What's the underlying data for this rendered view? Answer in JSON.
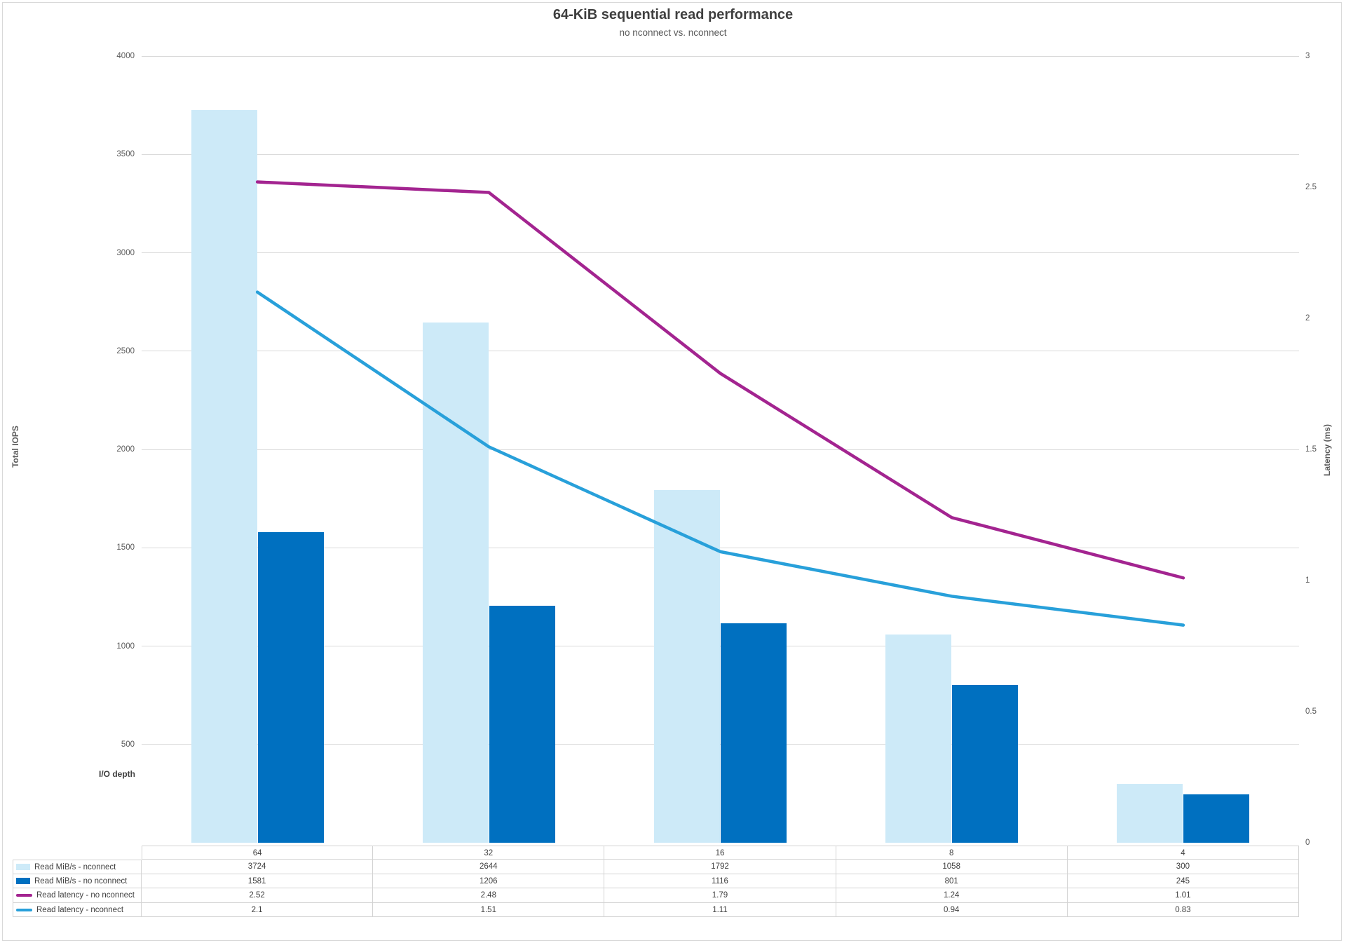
{
  "chart": {
    "title": "64-KiB sequential read performance",
    "subtitle": "no nconnect vs. nconnect"
  },
  "chart_data": {
    "type": "combo-bar-line-with-data-table",
    "categories": [
      "64",
      "32",
      "16",
      "8",
      "4"
    ],
    "series": [
      {
        "name": "Read MiB/s - nconnect",
        "type": "bar",
        "axis": "left",
        "color": "#CDEAF8",
        "values": [
          3724,
          2644,
          1792,
          1058,
          300
        ]
      },
      {
        "name": "Read MiB/s - no nconnect",
        "type": "bar",
        "axis": "left",
        "color": "#0070C0",
        "values": [
          1581,
          1206,
          1116,
          801,
          245
        ]
      },
      {
        "name": "Read latency - no nconnect",
        "type": "line",
        "axis": "right",
        "color": "#A32490",
        "values": [
          2.52,
          2.48,
          1.79,
          1.24,
          1.01
        ]
      },
      {
        "name": "Read latency - nconnect",
        "type": "line",
        "axis": "right",
        "color": "#28A0DA",
        "values": [
          2.1,
          1.51,
          1.11,
          0.94,
          0.83
        ]
      }
    ],
    "left_axis": {
      "title": "Total IOPS",
      "min": 0,
      "max": 4000,
      "tick_labels": [
        "4000",
        "3500",
        "3000",
        "2500",
        "2000",
        "1500",
        "1000",
        "500"
      ]
    },
    "right_axis": {
      "title": "Latency (ms)",
      "min": 0,
      "max": 3,
      "tick_labels": [
        "3",
        "2.5",
        "2",
        "1.5",
        "1",
        "0.5",
        "0"
      ]
    },
    "x_axis": {
      "title": "I/O depth"
    },
    "grid": true,
    "legend_position": "data-table-left",
    "colors": {
      "gridline": "#D9D9D9",
      "table_border": "#D3D3D3",
      "frame_border": "#D9D9D9",
      "axis_text": "#595959",
      "title_text": "#3F3F3F",
      "table_text": "#404040"
    }
  }
}
